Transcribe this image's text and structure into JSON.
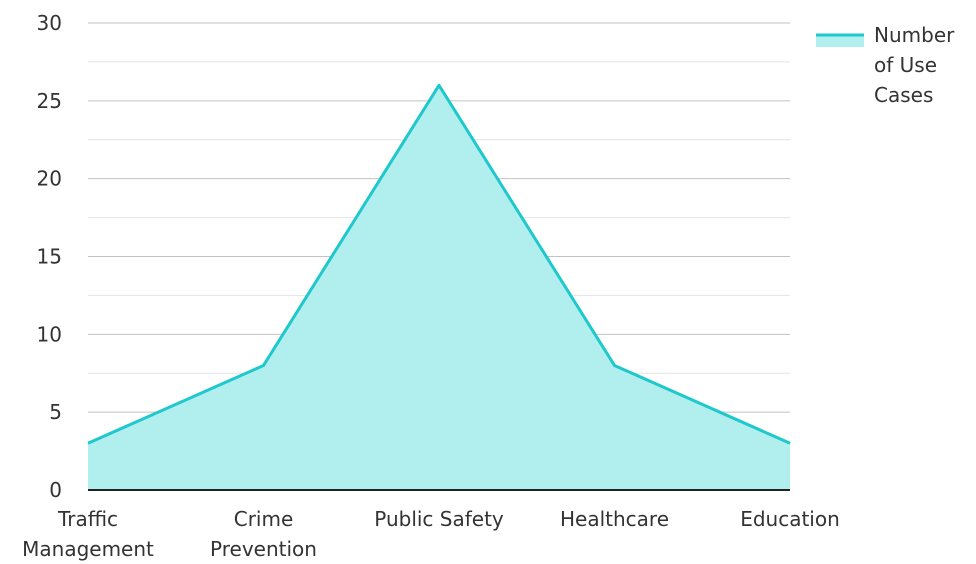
{
  "chart_data": {
    "type": "area",
    "title": "",
    "xlabel": "",
    "ylabel": "",
    "categories": [
      [
        "Traffic",
        "Management"
      ],
      [
        "Crime",
        "Prevention"
      ],
      [
        "Public Safety"
      ],
      [
        "Healthcare"
      ],
      [
        "Education"
      ]
    ],
    "series": [
      {
        "name": [
          "Number",
          "of Use",
          "Cases"
        ],
        "values": [
          3,
          8,
          26,
          8,
          3
        ],
        "color": "#1fc8cc",
        "fill": "#b1eeee"
      }
    ],
    "ylim": [
      0,
      30
    ],
    "yticks": [
      "0",
      "5",
      "10",
      "15",
      "20",
      "25",
      "30"
    ],
    "grid": true,
    "legend_position": "top-right"
  }
}
